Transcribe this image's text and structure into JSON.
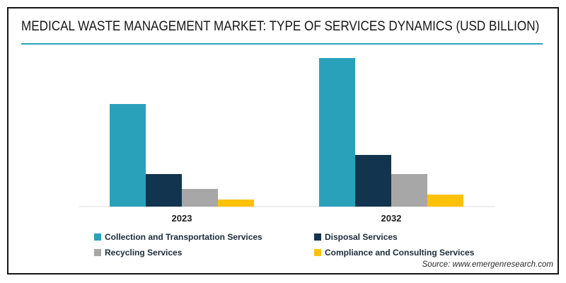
{
  "header": {
    "title": "MEDICAL WASTE MANAGEMENT MARKET: TYPE OF SERVICES DYNAMICS (USD BILLION)",
    "underline_color": "#2aa3bd"
  },
  "chart_data": {
    "type": "bar",
    "title": "MEDICAL WASTE MANAGEMENT MARKET: TYPE OF SERVICES DYNAMICS (USD BILLION)",
    "unit": "USD Billion",
    "categories": [
      "2023",
      "2032"
    ],
    "series": [
      {
        "name": "Collection and Transportation Services",
        "color": "#2aa1ba",
        "values": [
          69,
          100
        ]
      },
      {
        "name": "Disposal Services",
        "color": "#12344e",
        "values": [
          22,
          35
        ]
      },
      {
        "name": "Recycling Services",
        "color": "#a7a7a7",
        "values": [
          12,
          22
        ]
      },
      {
        "name": "Compliance and Consulting Services",
        "color": "#fdc107",
        "values": [
          5,
          8
        ]
      }
    ],
    "values_note": "No value axis, gridlines or data labels are shown; values are relative bar heights scaled so the tallest bar (Collection and Transportation Services, 2032) = 100",
    "xlabel": "",
    "ylabel": "",
    "ylim": [
      0,
      110
    ],
    "grid": false,
    "legend_position": "bottom",
    "axis_line_color": "#ededed"
  },
  "footer": {
    "source": "Source: www.emergenresearch.com"
  }
}
